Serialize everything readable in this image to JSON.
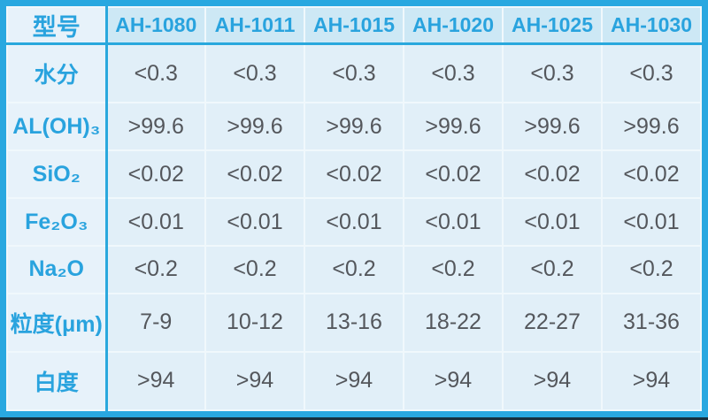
{
  "colors": {
    "frame_accent": "#29a8e0",
    "header_cell_bg": "#cde8f5",
    "cell_bg": "#e1eff8",
    "label_cell_bg": "#e7f2fa",
    "grid_line": "#f0f8fc",
    "label_text": "#29a3de",
    "value_text": "#54575c",
    "bottom_edge": "#16303f"
  },
  "chart_data": {
    "type": "table",
    "corner_label": "型号",
    "models": [
      "AH-1080",
      "AH-1011",
      "AH-1015",
      "AH-1020",
      "AH-1025",
      "AH-1030"
    ],
    "rows": [
      {
        "label": "水分",
        "values": [
          "<0.3",
          "<0.3",
          "<0.3",
          "<0.3",
          "<0.3",
          "<0.3"
        ]
      },
      {
        "label": "AL(OH)₃",
        "values": [
          ">99.6",
          ">99.6",
          ">99.6",
          ">99.6",
          ">99.6",
          ">99.6"
        ]
      },
      {
        "label": "SiO₂",
        "values": [
          "<0.02",
          "<0.02",
          "<0.02",
          "<0.02",
          "<0.02",
          "<0.02"
        ]
      },
      {
        "label": "Fe₂O₃",
        "values": [
          "<0.01",
          "<0.01",
          "<0.01",
          "<0.01",
          "<0.01",
          "<0.01"
        ]
      },
      {
        "label": "Na₂O",
        "values": [
          "<0.2",
          "<0.2",
          "<0.2",
          "<0.2",
          "<0.2",
          "<0.2"
        ]
      },
      {
        "label": "粒度(μm)",
        "values": [
          "7-9",
          "10-12",
          "13-16",
          "18-22",
          "22-27",
          "31-36"
        ]
      },
      {
        "label": "白度",
        "values": [
          ">94",
          ">94",
          ">94",
          ">94",
          ">94",
          ">94"
        ]
      }
    ]
  }
}
